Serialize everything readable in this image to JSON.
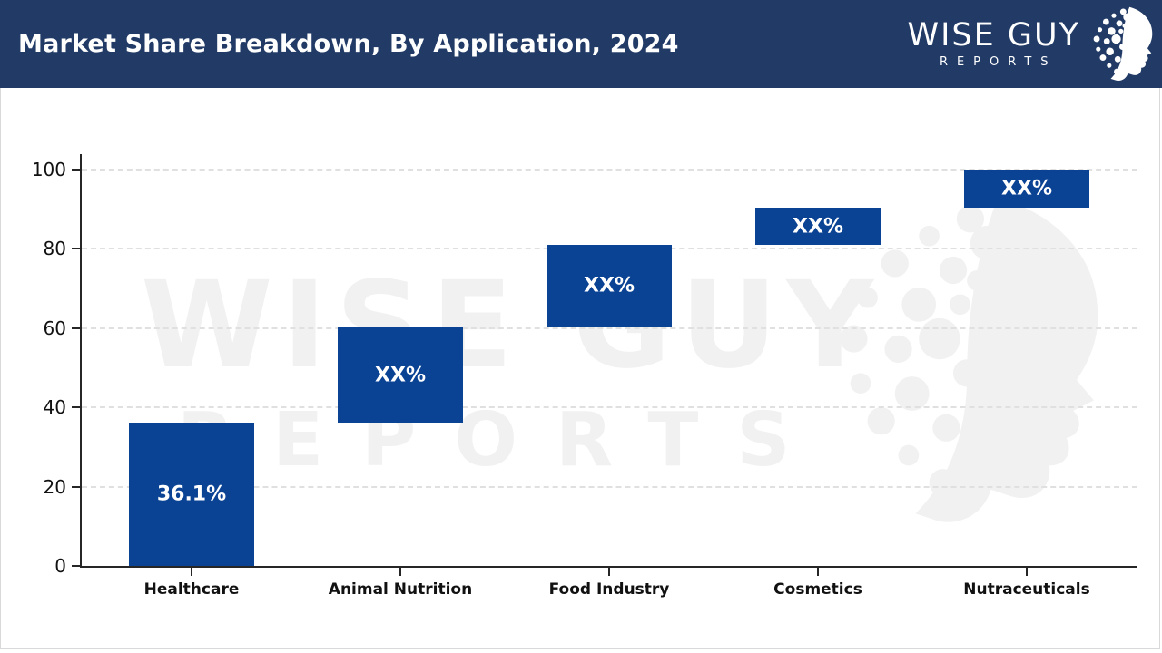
{
  "header": {
    "title": "Market Share Breakdown, By Application, 2024",
    "logo": {
      "line1": "WISE GUY",
      "line2": "REPORTS"
    }
  },
  "watermark": {
    "line1": "WISE GUY",
    "line2": "REPORTS"
  },
  "colors": {
    "header_bg": "#213a66",
    "bar": "#0a4294",
    "grid": "#e0e0e0",
    "axis": "#262626",
    "bar_label_text": "#ffffff",
    "watermark": "#f1f1f1"
  },
  "chart_data": {
    "type": "bar",
    "subtype": "waterfall",
    "title": "Market Share Breakdown, By Application, 2024",
    "xlabel": "",
    "ylabel": "",
    "categories": [
      "Healthcare",
      "Animal Nutrition",
      "Food Industry",
      "Cosmetics",
      "Nutraceuticals"
    ],
    "segments": [
      {
        "category": "Healthcare",
        "start": 0,
        "end": 36.1,
        "label": "36.1%"
      },
      {
        "category": "Animal Nutrition",
        "start": 36.1,
        "end": 60.2,
        "label": "XX%"
      },
      {
        "category": "Food Industry",
        "start": 60.2,
        "end": 81.0,
        "label": "XX%"
      },
      {
        "category": "Cosmetics",
        "start": 81.0,
        "end": 90.3,
        "label": "XX%"
      },
      {
        "category": "Nutraceuticals",
        "start": 90.3,
        "end": 100.0,
        "label": "XX%"
      }
    ],
    "y_ticks": [
      0,
      20,
      40,
      60,
      80,
      100
    ],
    "ylim": [
      0,
      104
    ],
    "grid": "horizontal-dashed",
    "legend": "none"
  }
}
